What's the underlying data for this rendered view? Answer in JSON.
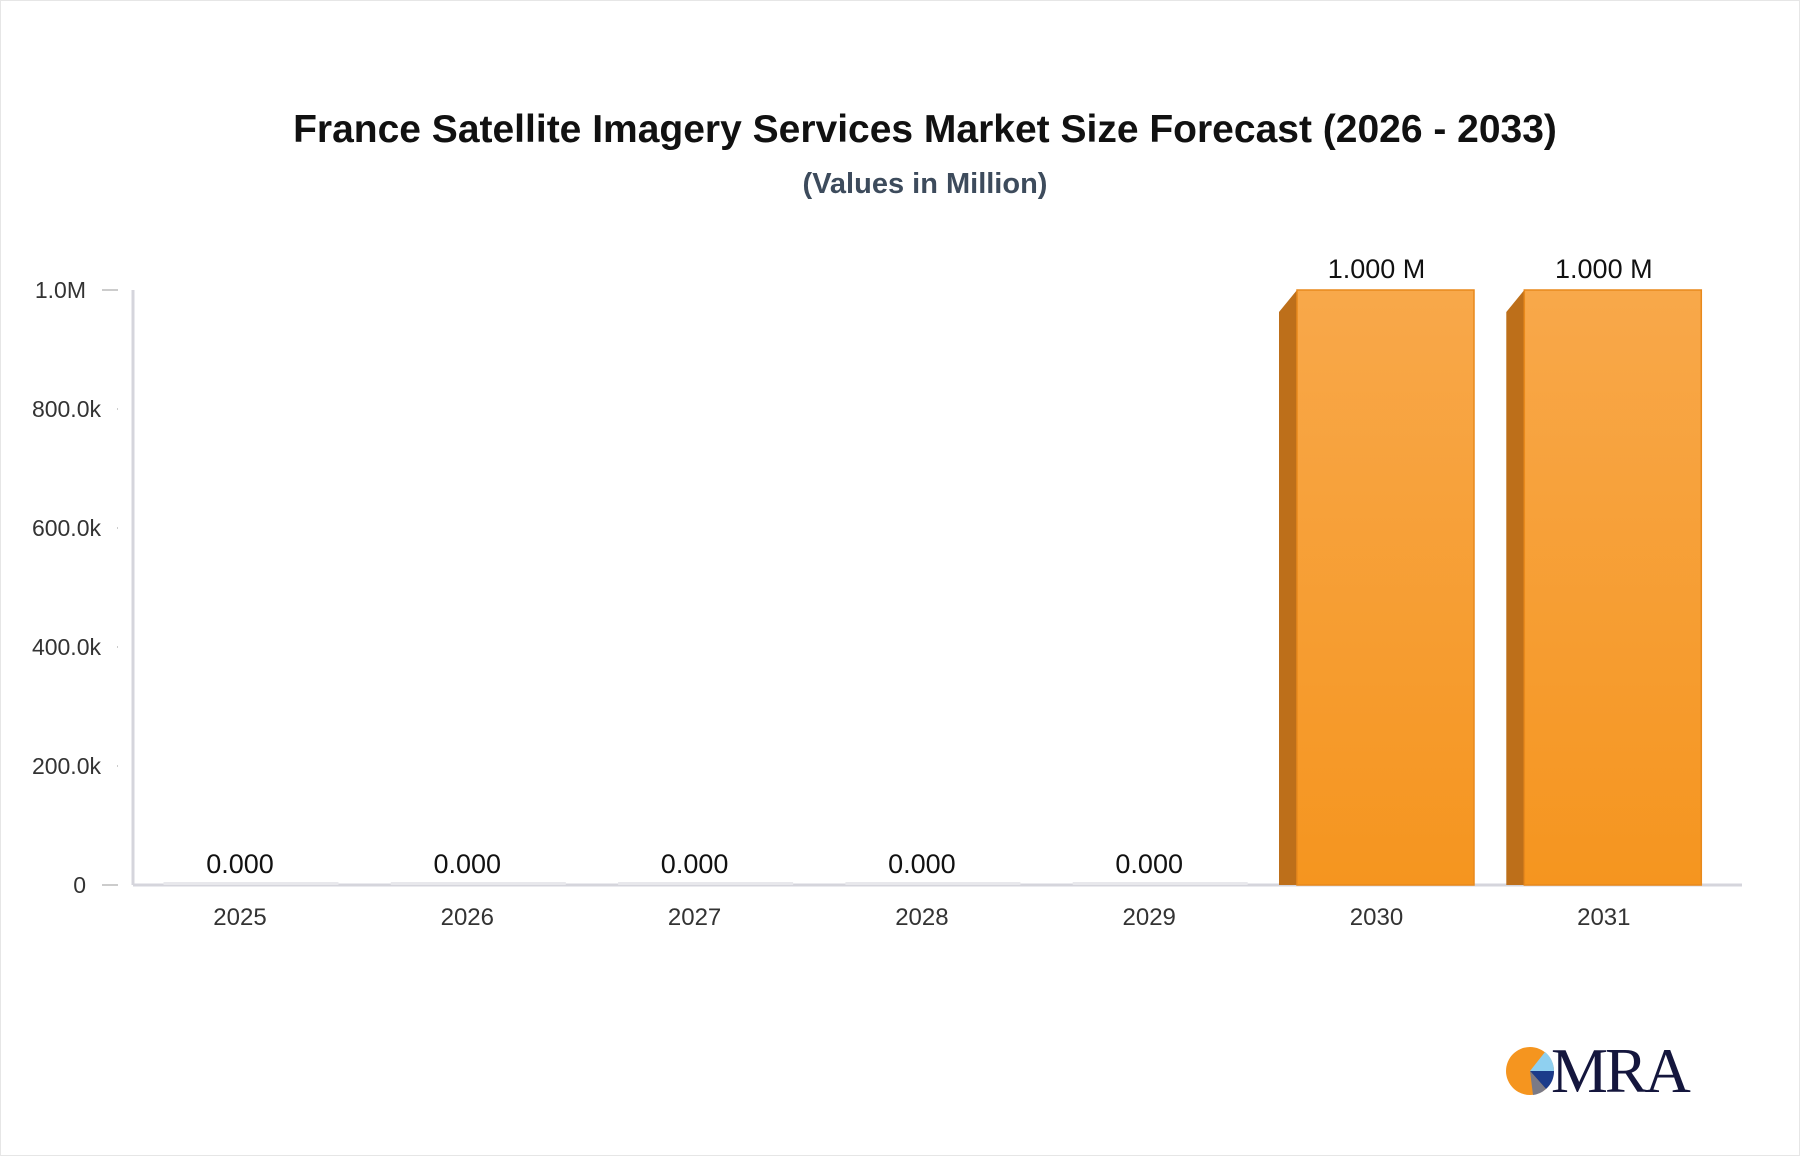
{
  "chart_data": {
    "type": "bar",
    "title": "France Satellite Imagery Services Market Size Forecast (2026 - 2033)",
    "subtitle": "(Values in Million)",
    "categories": [
      "2025",
      "2026",
      "2027",
      "2028",
      "2029",
      "2030",
      "2031"
    ],
    "values": [
      0,
      0,
      0,
      0,
      0,
      1000000,
      1000000
    ],
    "data_labels": [
      "0.000",
      "0.000",
      "0.000",
      "0.000",
      "0.000",
      "1.000 M",
      "1.000 M"
    ],
    "ylim": [
      0,
      1000000
    ],
    "yticks": [
      0,
      200000,
      400000,
      600000,
      800000,
      1000000
    ],
    "ytick_labels": [
      "0",
      "200.0k",
      "400.0k",
      "600.0k",
      "800.0k",
      "1.0M"
    ],
    "grid": false,
    "bar_color": "#f7a140",
    "bar_side_color": "#bd6f1a"
  },
  "logo": {
    "text": "MRA"
  }
}
